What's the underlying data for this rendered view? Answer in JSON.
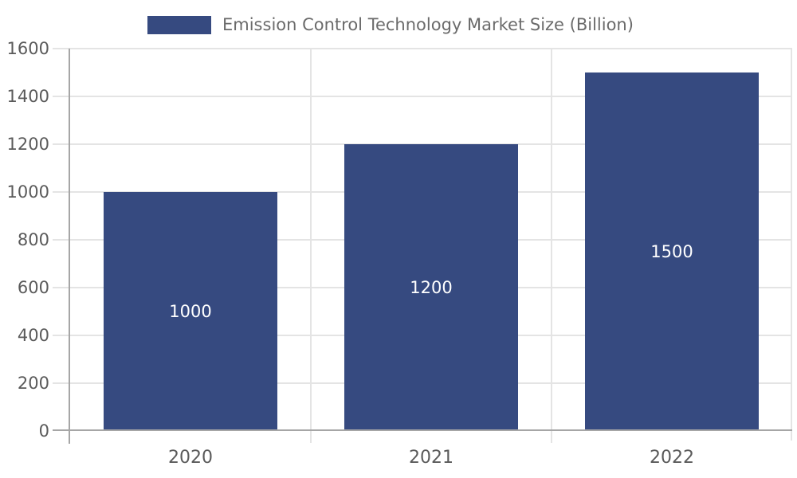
{
  "chart_data": {
    "type": "bar",
    "title": "Emission Control Technology Market Size (Billion)",
    "categories": [
      "2020",
      "2021",
      "2022"
    ],
    "values": [
      1000,
      1200,
      1500
    ],
    "bar_labels": [
      "1000",
      "1200",
      "1500"
    ],
    "xlabel": "",
    "ylabel": "",
    "ylim": [
      0,
      1600
    ],
    "ytick_step": 200,
    "ytick_labels": [
      "0",
      "200",
      "400",
      "600",
      "800",
      "1000",
      "1200",
      "1400",
      "1600"
    ],
    "grid": true,
    "legend_position": "top",
    "colors": {
      "bar": "#364a80",
      "gridline": "#e4e4e4",
      "axis_line": "#a6a6a6",
      "tick_label": "#5a5a5a",
      "legend_text": "#6b6b6b",
      "bar_label": "#ffffff",
      "background": "#ffffff"
    }
  }
}
